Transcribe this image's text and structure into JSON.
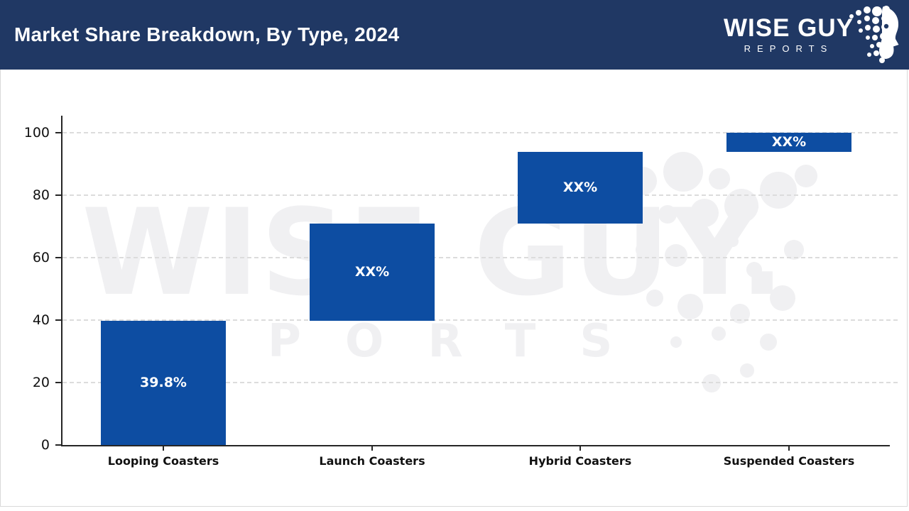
{
  "header": {
    "title": "Market Share Breakdown, By Type, 2024",
    "bg_color": "#203864",
    "logo": {
      "line1": "WISE GUY",
      "line2": "REPORTS"
    }
  },
  "watermark": {
    "line1": "WISE GUY.",
    "line2": "REPORTS"
  },
  "chart_data": {
    "type": "bar",
    "variant": "waterfall-segments",
    "title": "Market Share Breakdown, By Type, 2024",
    "xlabel": "",
    "ylabel": "",
    "legend": "none",
    "grid": "horizontal-dashed",
    "ylim": [
      0,
      105.5
    ],
    "y_ticks": [
      0,
      20,
      40,
      60,
      80,
      100
    ],
    "categories": [
      "Looping Coasters",
      "Launch Coasters",
      "Hybrid Coasters",
      "Suspended Coasters"
    ],
    "segments": [
      {
        "category": "Looping Coasters",
        "start": 0,
        "end": 39.8,
        "label": "39.8%"
      },
      {
        "category": "Launch Coasters",
        "start": 39.8,
        "end": 71.0,
        "label": "XX%"
      },
      {
        "category": "Hybrid Coasters",
        "start": 71.0,
        "end": 93.9,
        "label": "XX%"
      },
      {
        "category": "Suspended Coasters",
        "start": 93.9,
        "end": 100.1,
        "label": "XX%"
      }
    ],
    "bar_color": "#0D4DA2",
    "bar_label_color": "#FFFFFF"
  }
}
